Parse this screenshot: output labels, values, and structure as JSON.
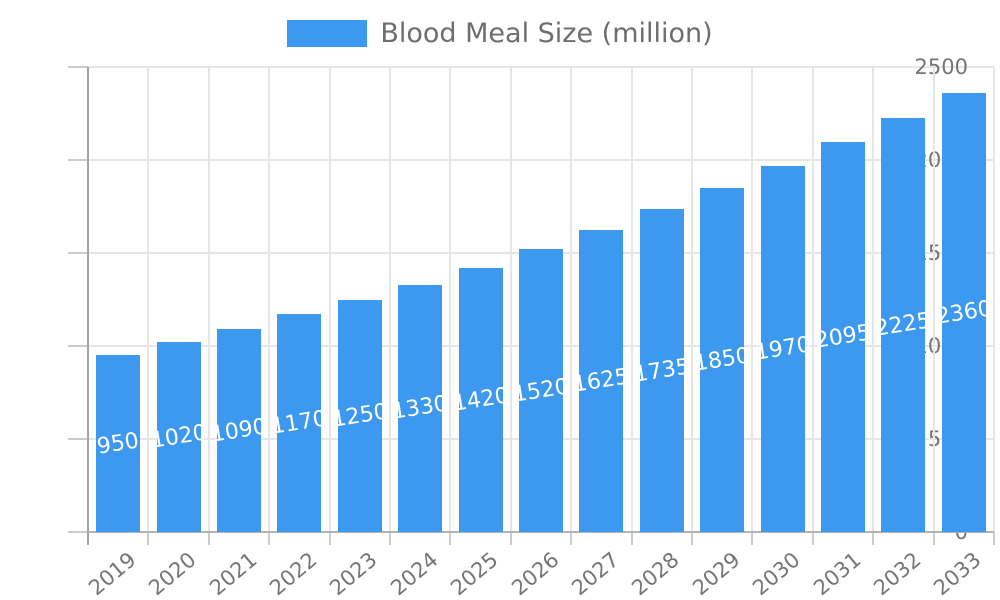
{
  "legend": {
    "label": "Blood Meal Size (million)"
  },
  "chart_data": {
    "type": "bar",
    "title": "Blood Meal Size (million)",
    "series_name": "Blood Meal Size (million)",
    "categories": [
      "2019",
      "2020",
      "2021",
      "2022",
      "2023",
      "2024",
      "2025",
      "2026",
      "2027",
      "2028",
      "2029",
      "2030",
      "2031",
      "2032",
      "2033"
    ],
    "values": [
      950,
      1020,
      1090,
      1170,
      1250,
      1330,
      1420,
      1520,
      1625,
      1735,
      1850,
      1970,
      2095,
      2225,
      2360
    ],
    "xlabel": "",
    "ylabel": "",
    "ylim": [
      0,
      2500
    ],
    "yticks": [
      0,
      500,
      1000,
      1500,
      2000,
      2500
    ],
    "grid": true,
    "legend_position": "top-center",
    "bar_value_labels": true,
    "xtick_rotation_deg": -40,
    "value_label_rotation_deg": -9
  },
  "colors": {
    "bar": "#3D99F0",
    "grid": "#e6e6e6",
    "axis_spine": "#a3a3a3",
    "baseline": "#b3b3b3",
    "tick": "#cccccc",
    "axis_text": "#757575",
    "value_text": "#ffffff",
    "legend_text": "#6e6e6e",
    "background": "#ffffff"
  }
}
